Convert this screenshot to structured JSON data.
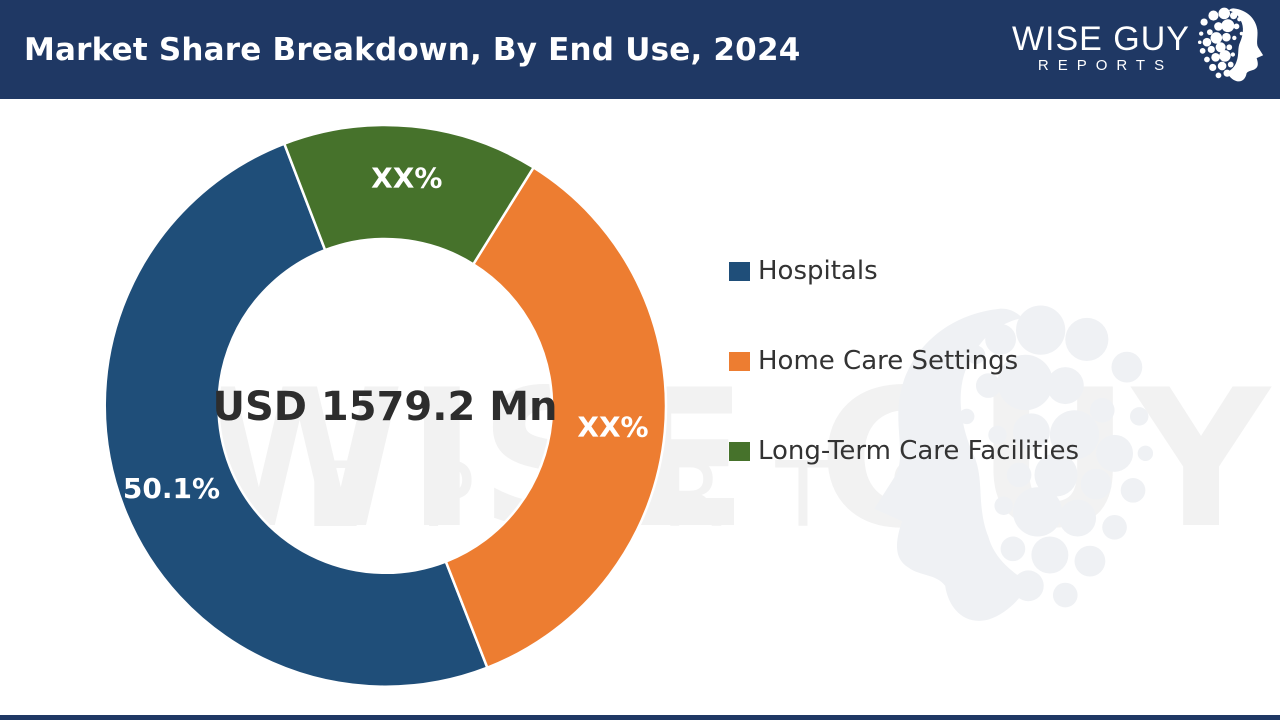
{
  "header": {
    "title": "Market Share Breakdown, By End Use, 2024",
    "logo": {
      "line1": "WISE GUY",
      "line2": "REPORTS"
    }
  },
  "watermark": {
    "line1": "WISE GUY",
    "line2": "REPORTS"
  },
  "colors": {
    "header_bg": "#1f3864",
    "footer_bar": "#1f3864",
    "hospitals": "#1f4e79",
    "home_care": "#ed7d31",
    "long_term_care": "#46722b",
    "percent_label": "#ffffff",
    "legend_text": "#333333",
    "center_text": "#2d2d2d"
  },
  "chart_data": {
    "type": "pie",
    "subtype": "donut",
    "title": "Market Share Breakdown, By End Use, 2024",
    "center_label": "USD 1579.2 Mn",
    "start_angle_deg": 111,
    "direction": "counterclockwise",
    "legend_position": "right",
    "segments": [
      {
        "label": "Hospitals",
        "value_pct": 50.1,
        "display_label": "50.1%",
        "color": "#1f4e79"
      },
      {
        "label": "Home Care Settings",
        "value_pct": 35.2,
        "display_label": "XX%",
        "color": "#ed7d31"
      },
      {
        "label": "Long-Term Care Facilities",
        "value_pct": 14.7,
        "display_label": "XX%",
        "color": "#46722b"
      }
    ]
  }
}
